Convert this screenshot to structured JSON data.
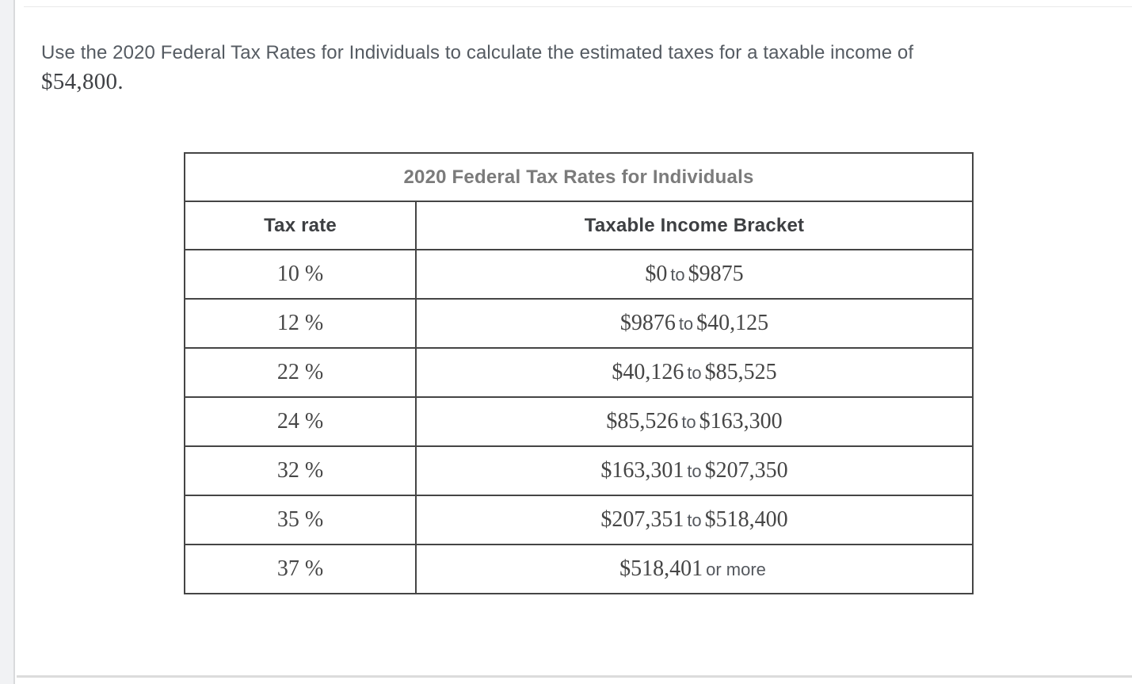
{
  "page": {
    "question": {
      "line1": "Use the 2020 Federal Tax Rates for Individuals to calculate the estimated taxes for a taxable income of",
      "amount": "$54,800."
    },
    "table": {
      "title": "2020 Federal Tax Rates for Individuals",
      "columns": [
        "Tax rate",
        "Taxable Income Bracket"
      ],
      "rows": [
        {
          "rate": "10 %",
          "min": "$0",
          "connector": "to",
          "max": "$9875"
        },
        {
          "rate": "12 %",
          "min": "$9876",
          "connector": "to",
          "max": "$40,125"
        },
        {
          "rate": "22 %",
          "min": "$40,126",
          "connector": "to",
          "max": "$85,525"
        },
        {
          "rate": "24 %",
          "min": "$85,526",
          "connector": "to",
          "max": "$163,300"
        },
        {
          "rate": "32 %",
          "min": "$163,301",
          "connector": "to",
          "max": "$207,350"
        },
        {
          "rate": "35 %",
          "min": "$207,351",
          "connector": "to",
          "max": "$518,400"
        },
        {
          "rate": "37 %",
          "min": "$518,401",
          "connector": "or more",
          "max": ""
        }
      ]
    },
    "colors": {
      "table_border": "#454545",
      "table_title_text": "#7b7b7b",
      "header_text": "#3d3f42",
      "question_text": "#555b62",
      "cell_text": "#464646",
      "gutter_bg": "#f1f2f4",
      "rule": "#dcdcdc"
    }
  }
}
